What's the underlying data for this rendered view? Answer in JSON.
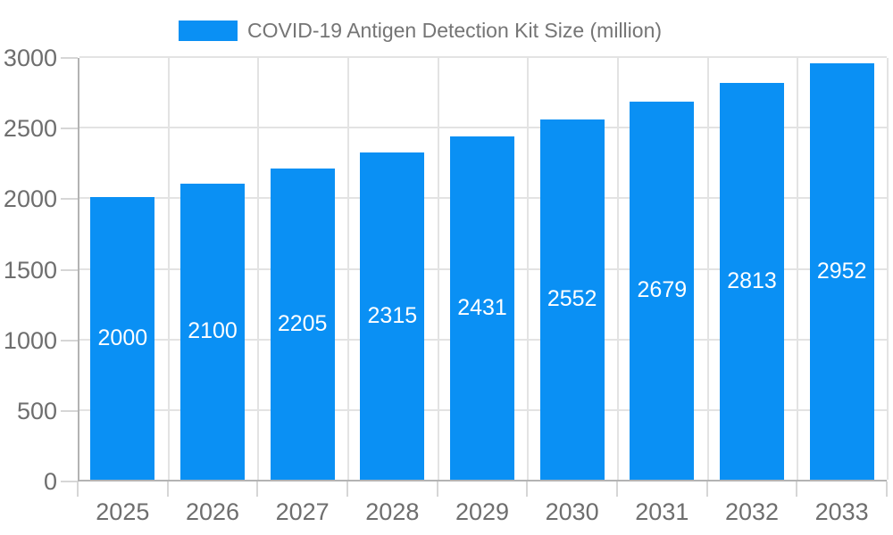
{
  "legend": {
    "label": "COVID-19 Antigen Detection Kit Size (million)"
  },
  "chart_data": {
    "type": "bar",
    "title": "COVID-19 Antigen Detection Kit Size (million)",
    "categories": [
      "2025",
      "2026",
      "2027",
      "2028",
      "2029",
      "2030",
      "2031",
      "2032",
      "2033"
    ],
    "series": [
      {
        "name": "COVID-19 Antigen Detection Kit Size (million)",
        "values": [
          2000,
          2100,
          2205,
          2315,
          2431,
          2552,
          2679,
          2813,
          2952
        ]
      }
    ],
    "xlabel": "",
    "ylabel": "",
    "ylim": [
      0,
      3000
    ],
    "yticks": [
      0,
      500,
      1000,
      1500,
      2000,
      2500,
      3000
    ],
    "grid": true,
    "legend_position": "top-center",
    "value_labels_position": "inside-center",
    "colors": {
      "bar": "#0a90f4",
      "gridline": "#e3e3e3",
      "axis_line": "#b3b3b3",
      "tick": "#d6d6d6",
      "axis_text": "#6e6e6e",
      "legend_text": "#757575",
      "value_label_text": "#ffffff",
      "background": "#ffffff"
    }
  }
}
